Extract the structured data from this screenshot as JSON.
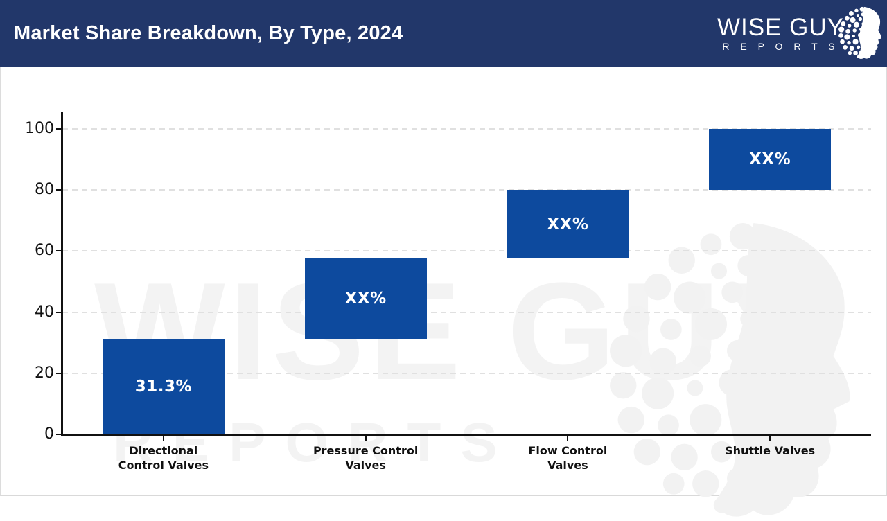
{
  "header": {
    "title": "Market Share Breakdown, By Type, 2024",
    "bg_color": "#22376a",
    "logo": {
      "line1": "WISE GUY",
      "line2": "R E P O R T S"
    }
  },
  "watermark": {
    "line1": "WISE GUY",
    "line2": "REPORTS"
  },
  "chart_data": {
    "type": "bar",
    "subtype": "waterfall",
    "title": "Market Share Breakdown, By Type, 2024",
    "xlabel": "",
    "ylabel": "",
    "ylim": [
      0,
      105
    ],
    "yticks": [
      0,
      20,
      40,
      60,
      80,
      100
    ],
    "grid": "horizontal-dashed",
    "legend": "none",
    "bar_color": "#0d4a9e",
    "bar_label_color": "#ffffff",
    "axis_color": "#111111",
    "grid_color": "#e0e0e0",
    "categories": [
      "Directional Control Valves",
      "Pressure Control Valves",
      "Flow Control Valves",
      "Shuttle Valves"
    ],
    "category_lines": [
      [
        "Directional",
        "Control Valves"
      ],
      [
        "Pressure Control",
        "Valves"
      ],
      [
        "Flow Control",
        "Valves"
      ],
      [
        "Shuttle Valves"
      ]
    ],
    "segments": [
      {
        "category": "Directional Control Valves",
        "start": 0,
        "end": 31.3,
        "value_label": "31.3%"
      },
      {
        "category": "Pressure Control Valves",
        "start": 31.3,
        "end": 57.5,
        "value_label": "XX%"
      },
      {
        "category": "Flow Control Valves",
        "start": 57.5,
        "end": 80,
        "value_label": "XX%"
      },
      {
        "category": "Shuttle Valves",
        "start": 80,
        "end": 100,
        "value_label": "XX%"
      }
    ]
  }
}
